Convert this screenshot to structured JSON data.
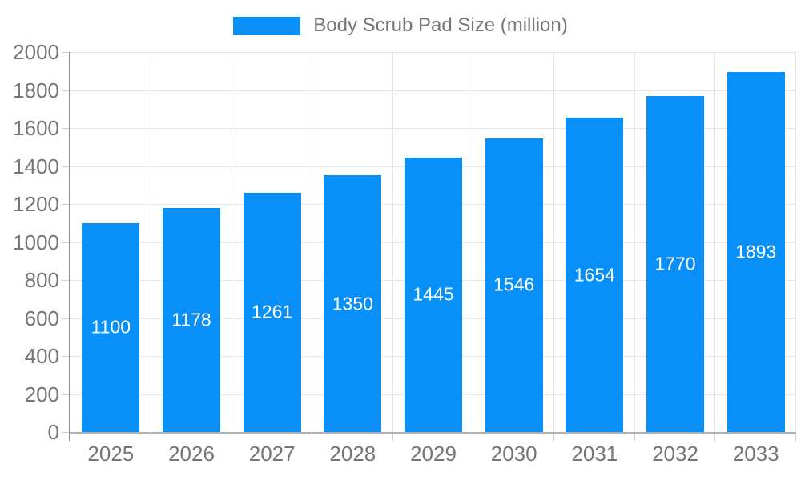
{
  "chart_data": {
    "type": "bar",
    "title": "Body Scrub Pad Size (million)",
    "xlabel": "",
    "ylabel": "",
    "categories": [
      "2025",
      "2026",
      "2027",
      "2028",
      "2029",
      "2030",
      "2031",
      "2032",
      "2033"
    ],
    "series": [
      {
        "name": "Body Scrub Pad Size (million)",
        "values": [
          1100,
          1178,
          1261,
          1350,
          1445,
          1546,
          1654,
          1770,
          1893
        ]
      }
    ],
    "ylim": [
      0,
      2000
    ],
    "y_ticks": [
      0,
      200,
      400,
      600,
      800,
      1000,
      1200,
      1400,
      1600,
      1800,
      2000
    ],
    "grid": true,
    "legend_position": "top-center",
    "value_label_position": "inside-center",
    "bar_width_ratio": 0.715,
    "colors": {
      "bar": "#0890f8",
      "grid_line": "#e7e7e7",
      "axis_line_x": "#b0b0b0",
      "axis_line_y": "#8f8f8f",
      "tick": "#cdcdcd",
      "axis_text": "#757575",
      "value_label": "#ffffff"
    }
  }
}
